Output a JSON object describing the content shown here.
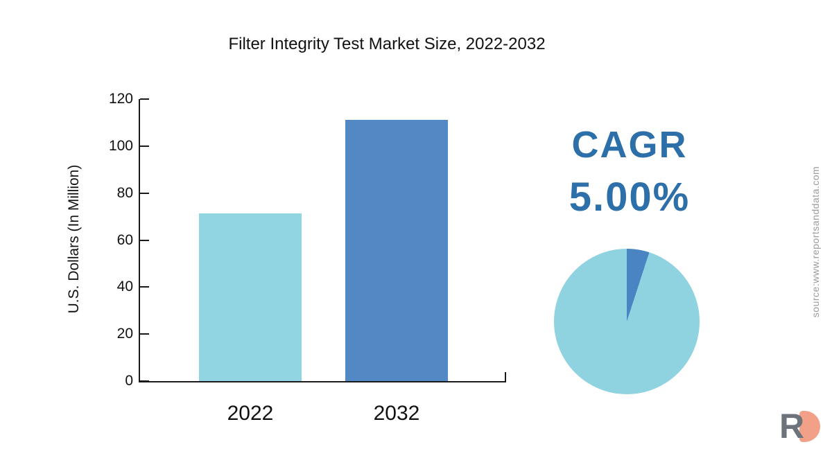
{
  "title": "Filter Integrity Test Market Size, 2022-2032",
  "chart_data": {
    "type": "bar",
    "title": "Filter Integrity Test Market Size, 2022-2032",
    "categories": [
      "2022",
      "2032"
    ],
    "values": [
      71.5,
      111.2
    ],
    "xlabel": "",
    "ylabel": "U.S. Dollars (In Million)",
    "ylim": [
      0,
      120
    ],
    "yticks": [
      0,
      20,
      40,
      60,
      80,
      100,
      120
    ],
    "grid": false,
    "legend": false,
    "bar_colors": [
      "#92d5e2",
      "#5288c4"
    ]
  },
  "cagr": {
    "label": "CAGR",
    "value": "5.00%",
    "color": "#2d6fa9"
  },
  "pie": {
    "start_angle_deg": 0,
    "slices": [
      {
        "name": "cagr-highlight",
        "value": 5,
        "color": "#4a84c2"
      },
      {
        "name": "remainder",
        "value": 95,
        "color": "#8fd2e0"
      }
    ]
  },
  "source": {
    "text": "source:www.reportsanddata.com",
    "color": "#9b9b9b"
  },
  "logo": {
    "letter_r": "R",
    "r_color": "#6d737a",
    "d_color": "#f2a188"
  },
  "colors": {
    "background": "#ffffff",
    "axis": "#1a1a1a",
    "text": "#111111"
  }
}
